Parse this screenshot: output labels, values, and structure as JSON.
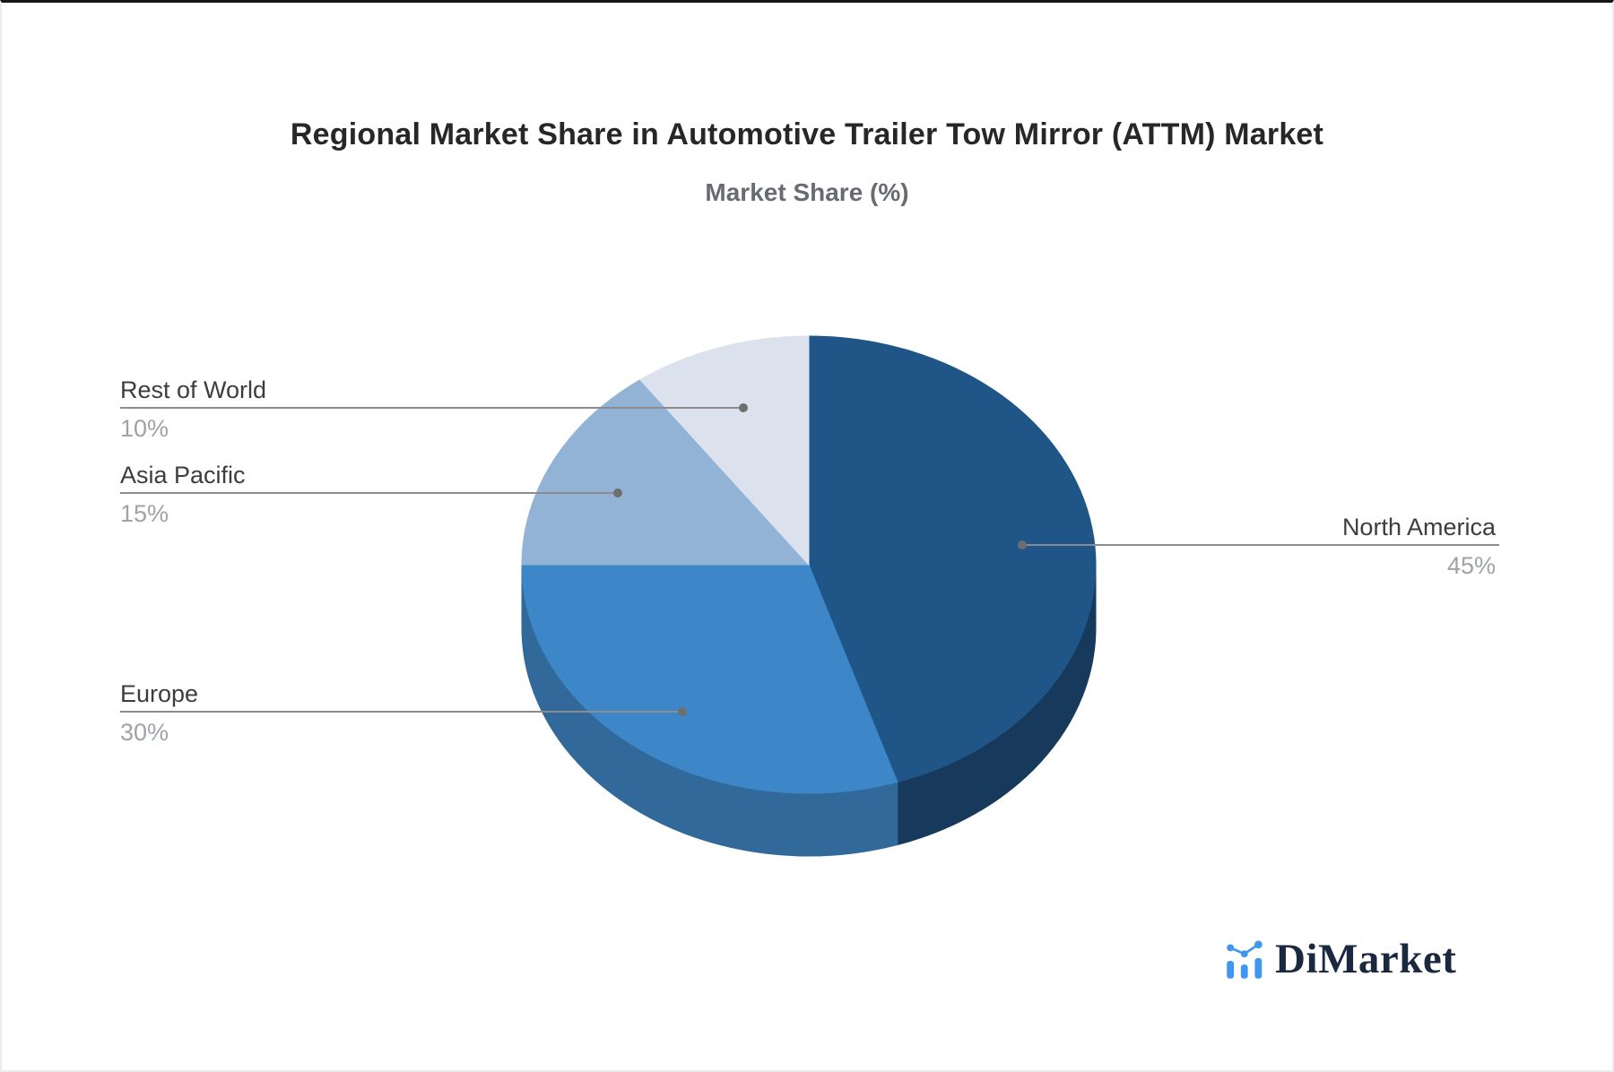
{
  "page": {
    "title": "Regional Market Share in Automotive Trailer Tow Mirror (ATTM) Market",
    "subtitle": "Market Share (%)"
  },
  "chart_data": {
    "type": "pie",
    "style": "3d-pie",
    "title": "Regional Market Share in Automotive Trailer Tow Mirror (ATTM) Market",
    "subtitle": "Market Share (%)",
    "unit": "%",
    "start_angle": "12 o'clock",
    "direction": "clockwise",
    "slices": [
      {
        "label": "North America",
        "value": 45,
        "display": "45%",
        "color": "#1f5687",
        "side_color": "#16395c"
      },
      {
        "label": "Europe",
        "value": 30,
        "display": "30%",
        "color": "#3d87c8",
        "side_color": "#31699a"
      },
      {
        "label": "Asia Pacific",
        "value": 15,
        "display": "15%",
        "color": "#92b3d6",
        "side_color": "#6f8fb3"
      },
      {
        "label": "Rest of World",
        "value": 10,
        "display": "10%",
        "color": "#dbe2ee",
        "side_color": "#b3bccb"
      }
    ],
    "callout_line_color": "#8c8c8c",
    "callout_dot_color": "#6e6e6e",
    "label_color": "#3b3d40",
    "percent_color": "#9fa3a7"
  },
  "branding": {
    "logo_text": "DiMarket",
    "logo_icon": "bar-chart-trend-icon",
    "logo_icon_color": "#3f97ef",
    "logo_text_color": "#1a2940"
  }
}
